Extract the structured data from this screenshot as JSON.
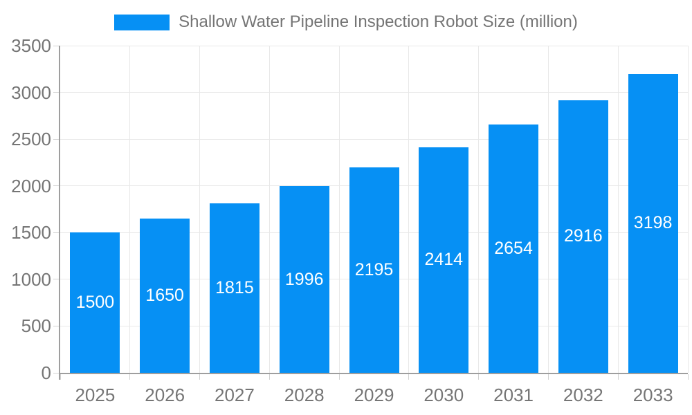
{
  "chart_data": {
    "type": "bar",
    "title": "Shallow Water Pipeline Inspection Robot Size (million)",
    "categories": [
      "2025",
      "2026",
      "2027",
      "2028",
      "2029",
      "2030",
      "2031",
      "2032",
      "2033"
    ],
    "values": [
      1500,
      1650,
      1815,
      1996,
      2195,
      2414,
      2654,
      2916,
      3198
    ],
    "xlabel": "",
    "ylabel": "",
    "ylim": [
      0,
      3500
    ],
    "yticks": [
      0,
      500,
      1000,
      1500,
      2000,
      2500,
      3000,
      3500
    ],
    "grid": true,
    "legend_position": "top",
    "bar_color": "#0690F4",
    "value_label_color": "#FFFFFF",
    "axis_text_color": "#757575",
    "axis_line_color": "#9E9E9E",
    "grid_color": "#E8E8E8"
  }
}
